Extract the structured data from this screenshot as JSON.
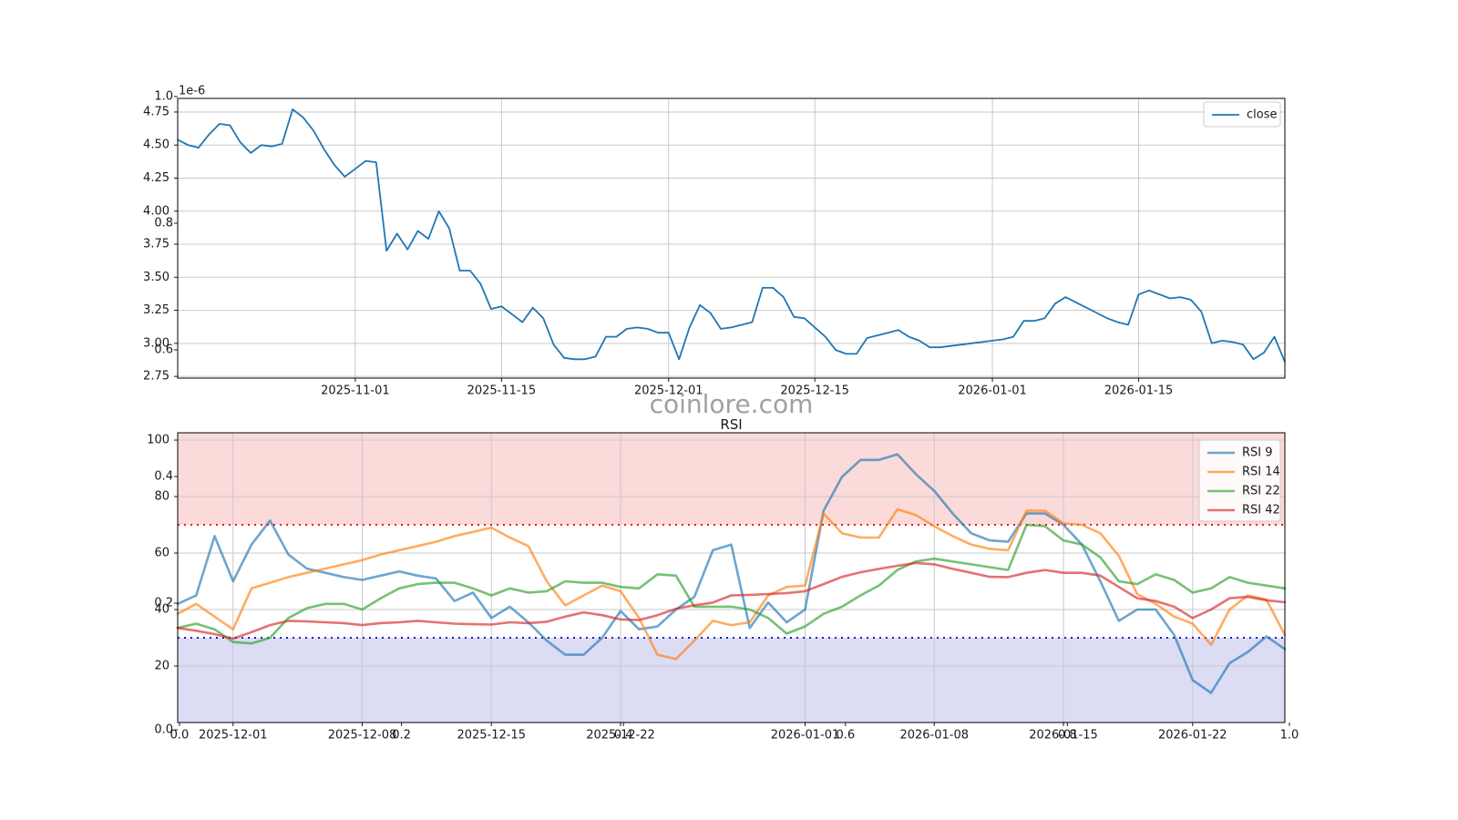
{
  "watermark": "coinlore.com",
  "colors": {
    "accent_blue": "#1f77b4",
    "accent_orange": "#ff7f0e",
    "accent_green": "#2ca02c",
    "accent_red": "#d62728",
    "grid": "#c9c9c9",
    "overbought_band": "#fbdada",
    "oversold_band": "#dcdcf5",
    "overbought_line": "#f01414",
    "oversold_line": "#1616c8",
    "watermark_gray": "#a0a0a0"
  },
  "ghost_axis": {
    "xtick_labels": [
      "0.0",
      "0.2",
      "0.4",
      "0.6",
      "0.8",
      "1.0"
    ],
    "ytick_labels": [
      "0.0",
      "0.2",
      "0.4",
      "0.6",
      "0.8",
      "1.0"
    ]
  },
  "chart_data": [
    {
      "type": "line",
      "name": "price",
      "title": "",
      "offset_text": "1e-6",
      "ylim": [
        2.737,
        4.853
      ],
      "ytick_values": [
        2.75,
        3.0,
        3.25,
        3.5,
        3.75,
        4.0,
        4.25,
        4.5,
        4.75
      ],
      "ytick_labels": [
        "2.75",
        "3.00",
        "3.25",
        "3.50",
        "3.75",
        "4.00",
        "4.25",
        "4.50",
        "4.75"
      ],
      "xticks": [
        {
          "day": 17,
          "label": "2025-11-01"
        },
        {
          "day": 31,
          "label": "2025-11-15"
        },
        {
          "day": 47,
          "label": "2025-12-01"
        },
        {
          "day": 61,
          "label": "2025-12-15"
        },
        {
          "day": 78,
          "label": "2026-01-01"
        },
        {
          "day": 92,
          "label": "2026-01-15"
        }
      ],
      "legend_position": "upper-right",
      "series": [
        {
          "name": "close",
          "color": "#1f77b4",
          "opacity": 1,
          "width": 1.8,
          "values": [
            4.54,
            4.5,
            4.48,
            4.58,
            4.66,
            4.65,
            4.52,
            4.44,
            4.5,
            4.49,
            4.51,
            4.77,
            4.71,
            4.61,
            4.47,
            4.35,
            4.26,
            4.32,
            4.38,
            4.37,
            3.7,
            3.83,
            3.71,
            3.85,
            3.79,
            4.0,
            3.87,
            3.55,
            3.55,
            3.45,
            3.26,
            3.28,
            3.22,
            3.16,
            3.27,
            3.19,
            2.99,
            2.89,
            2.88,
            2.88,
            2.9,
            3.05,
            3.05,
            3.11,
            3.12,
            3.11,
            3.08,
            3.08,
            2.88,
            3.12,
            3.29,
            3.23,
            3.11,
            3.12,
            3.14,
            3.16,
            3.42,
            3.42,
            3.35,
            3.2,
            3.19,
            3.12,
            3.05,
            2.95,
            2.92,
            2.92,
            3.04,
            3.06,
            3.08,
            3.1,
            3.05,
            3.02,
            2.97,
            2.97,
            2.98,
            2.99,
            3.0,
            3.01,
            3.02,
            3.03,
            3.05,
            3.17,
            3.17,
            3.19,
            3.3,
            3.35,
            3.31,
            3.27,
            3.23,
            3.19,
            3.16,
            3.14,
            3.37,
            3.4,
            3.37,
            3.34,
            3.35,
            3.33,
            3.24,
            3.0,
            3.02,
            3.01,
            2.99,
            2.88,
            2.93,
            3.05,
            2.86
          ]
        }
      ]
    },
    {
      "type": "line",
      "name": "rsi",
      "title": "RSI",
      "ylim": [
        0,
        102.6
      ],
      "ytick_values": [
        20,
        40,
        60,
        80,
        100
      ],
      "ytick_labels": [
        "20",
        "40",
        "60",
        "80",
        "100"
      ],
      "xticks": [
        {
          "day": 3,
          "label": "2025-12-01"
        },
        {
          "day": 10,
          "label": "2025-12-08"
        },
        {
          "day": 17,
          "label": "2025-12-15"
        },
        {
          "day": 24,
          "label": "2025-12-22"
        },
        {
          "day": 34,
          "label": "2026-01-01"
        },
        {
          "day": 41,
          "label": "2026-01-08"
        },
        {
          "day": 48,
          "label": "2026-01-15"
        },
        {
          "day": 55,
          "label": "2026-01-22"
        }
      ],
      "bands": [
        {
          "name": "overbought",
          "from": 70,
          "to": 102.6,
          "color": "#fbdada"
        },
        {
          "name": "oversold",
          "from": 0,
          "to": 30,
          "color": "#dcdcf5"
        }
      ],
      "threshold_lines": [
        {
          "name": "overbought",
          "value": 70,
          "color": "#f01414"
        },
        {
          "name": "oversold",
          "value": 30,
          "color": "#1616c8"
        }
      ],
      "legend_position": "upper-right",
      "series": [
        {
          "name": "RSI 9",
          "color": "#1f77b4",
          "opacity": 0.65,
          "width": 2.6,
          "values": [
            42,
            45,
            66,
            50,
            63,
            71.5,
            59.5,
            54.5,
            53,
            51.5,
            50.5,
            52,
            53.5,
            52,
            51,
            43,
            46,
            37,
            41,
            35.5,
            29,
            24,
            24,
            30,
            39.5,
            33,
            34,
            40,
            44.5,
            61,
            63,
            33.5,
            42.5,
            35.5,
            40,
            75,
            87,
            93,
            93,
            95,
            88,
            82,
            74,
            67,
            64.5,
            64,
            74,
            74,
            70,
            63,
            50,
            36,
            40,
            40,
            31,
            15,
            10.5,
            21,
            25,
            30.5,
            26
          ]
        },
        {
          "name": "RSI 14",
          "color": "#ff7f0e",
          "opacity": 0.65,
          "width": 2.6,
          "values": [
            38.5,
            42,
            37.5,
            33,
            47.5,
            49.5,
            51.5,
            53,
            54.5,
            56,
            57.5,
            59.5,
            61,
            62.5,
            64,
            66,
            67.5,
            69,
            65.5,
            62.5,
            50,
            41.5,
            45,
            48.5,
            46.5,
            37,
            24,
            22.5,
            29,
            36,
            34.5,
            35.5,
            45,
            48,
            48.5,
            74,
            67,
            65.5,
            65.5,
            75.5,
            73.5,
            69.5,
            66,
            63,
            61.5,
            61,
            75,
            75,
            70.5,
            70,
            67,
            59,
            45.5,
            42,
            37.5,
            35,
            27.5,
            40,
            45,
            43.5,
            31
          ]
        },
        {
          "name": "RSI 22",
          "color": "#2ca02c",
          "opacity": 0.65,
          "width": 2.6,
          "values": [
            33.5,
            35,
            33,
            28.5,
            28,
            30,
            37,
            40.5,
            42,
            42,
            40,
            44,
            47.5,
            49,
            49.5,
            49.5,
            47.5,
            45,
            47.5,
            46,
            46.5,
            50,
            49.5,
            49.5,
            48,
            47.5,
            52.5,
            52,
            41,
            41,
            41,
            40,
            37,
            31.5,
            34,
            38.5,
            41,
            45,
            48.5,
            54,
            57,
            58,
            57,
            56,
            55,
            54,
            70,
            69.5,
            64.5,
            63,
            58.5,
            50,
            49,
            52.5,
            50.5,
            46,
            47.5,
            51.5,
            49.5,
            48.5,
            47.5
          ]
        },
        {
          "name": "RSI 42",
          "color": "#d62728",
          "opacity": 0.65,
          "width": 2.6,
          "values": [
            33.5,
            32.5,
            31.3,
            29.7,
            32,
            34.5,
            36,
            35.8,
            35.5,
            35.2,
            34.5,
            35.2,
            35.5,
            36,
            35.5,
            35,
            34.8,
            34.7,
            35.5,
            35.2,
            35.7,
            37.5,
            39,
            38,
            36.5,
            36.3,
            38,
            40.3,
            41.5,
            42.5,
            45,
            45.2,
            45.5,
            45.8,
            46.5,
            49,
            51.6,
            53.2,
            54.4,
            55.5,
            56.5,
            56,
            54.4,
            53,
            51.6,
            51.5,
            53,
            54,
            53,
            53,
            52,
            48,
            44,
            43,
            41,
            37,
            40,
            44,
            44.5,
            43.3,
            42.6
          ]
        }
      ]
    }
  ]
}
